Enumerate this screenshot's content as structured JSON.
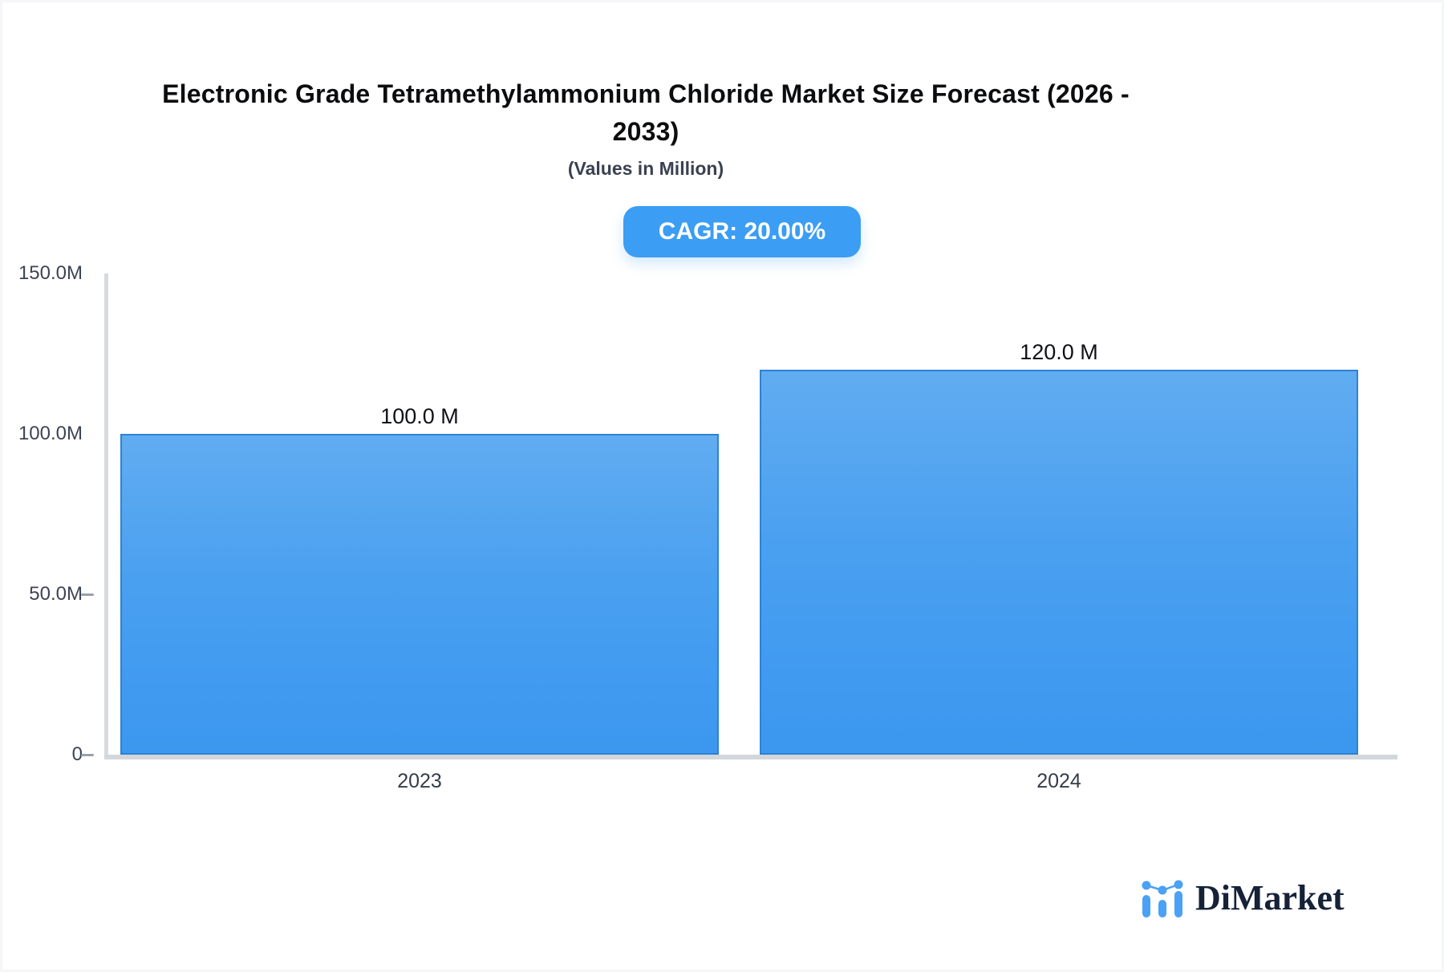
{
  "header": {
    "title_line1": "Electronic Grade Tetramethylammonium Chloride Market Size Forecast (2026 -",
    "title_line2": "2033)",
    "subtitle": "(Values in Million)",
    "cagr_badge": "CAGR: 20.00%",
    "badge_color": "#3b9df3"
  },
  "chart_data": {
    "type": "bar",
    "title": "Electronic Grade Tetramethylammonium Chloride Market Size Forecast (2026 - 2033)",
    "subtitle": "(Values in Million)",
    "cagr": "20.00%",
    "unit": "Million",
    "categories": [
      "2023",
      "2024"
    ],
    "values": [
      100.0,
      120.0
    ],
    "value_labels": [
      "100.0 M",
      "120.0 M"
    ],
    "ylim": [
      0,
      150
    ],
    "yticks": [
      150,
      100,
      50,
      0
    ],
    "ytick_labels": [
      "150.0M",
      "100.0M",
      "50.0M",
      "0"
    ],
    "ytick_marks": [
      50,
      0
    ],
    "grid": false,
    "legend": false,
    "bar_color_top": "#61acf1",
    "bar_color_bottom": "#3b97ef",
    "bar_border_color": "#2e82d4",
    "axis_color": "#d3d7dc"
  },
  "footer": {
    "logo_text": "DiMarket",
    "logo_icon": "bar-line-chart-icon",
    "logo_icon_color": "#4aa1f5",
    "logo_text_color": "#152238"
  }
}
